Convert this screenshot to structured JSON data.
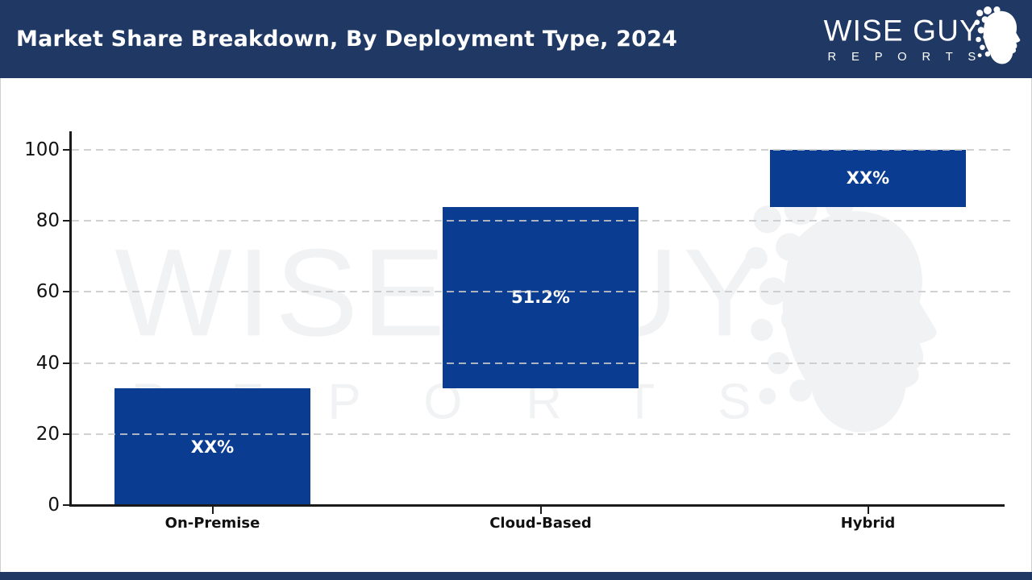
{
  "header": {
    "title": "Market Share Breakdown, By Deployment Type, 2024",
    "logo": {
      "brand_line1": "WISE GUY",
      "brand_line2": "R E P O R T S",
      "icon": "dotted-head-profile-icon"
    }
  },
  "watermark": {
    "brand_line1": "WISE GUY",
    "brand_line2": "R E P O R T S",
    "icon": "dotted-head-profile-icon"
  },
  "chart_data": {
    "type": "bar",
    "subtype": "floating-waterfall-bars",
    "title": "Market Share Breakdown, By Deployment Type, 2024",
    "categories": [
      "On-Premise",
      "Cloud-Based",
      "Hybrid"
    ],
    "segments": [
      {
        "category": "On-Premise",
        "start": 0,
        "end": 32.8,
        "label": "XX%"
      },
      {
        "category": "Cloud-Based",
        "start": 32.8,
        "end": 84,
        "label": "51.2%"
      },
      {
        "category": "Hybrid",
        "start": 84,
        "end": 100,
        "label": "XX%"
      }
    ],
    "xlabel": "",
    "ylabel": "",
    "ylim": [
      0,
      105
    ],
    "yticks": [
      0,
      20,
      40,
      60,
      80,
      100
    ],
    "grid": "horizontal dashed lines drawn over bars",
    "legend": "none",
    "bar_color": "#0a3d91",
    "bar_label_color": "#ffffff"
  },
  "colors": {
    "header_background": "#1f3864",
    "footer_background": "#1f3864",
    "title_text": "#ffffff",
    "bar_fill": "#0a3d91",
    "axis": "#1a1a1a",
    "gridline": "#c9c9c9",
    "watermark": "#f1f2f4",
    "page_background": "#ffffff"
  }
}
